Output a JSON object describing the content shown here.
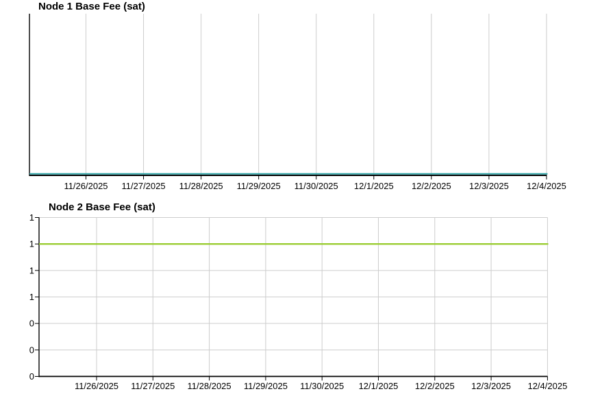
{
  "page": {
    "background_color": "#ffffff",
    "text_color": "#000000"
  },
  "style": {
    "axis_color": "#000000",
    "grid_color": "#cccccc",
    "tick_color": "#000000",
    "label_color": "#000000"
  },
  "chart_data": [
    {
      "type": "line",
      "title": "Node 1 Base Fee (sat)",
      "xlabel": "",
      "ylabel": "",
      "x_tick_labels": [
        "11/26/2025",
        "11/27/2025",
        "11/28/2025",
        "11/29/2025",
        "11/30/2025",
        "12/1/2025",
        "12/2/2025",
        "12/3/2025",
        "12/4/2025"
      ],
      "y_tick_labels": [],
      "ylim": [
        0,
        1
      ],
      "grid": {
        "vertical": true,
        "horizontal": false
      },
      "legend": "none",
      "series": [
        {
          "name": "Node 1 Base Fee",
          "values": [
            0,
            0,
            0,
            0,
            0,
            0,
            0,
            0,
            0
          ],
          "color": "#2fa4a6",
          "shape": "constant horizontal line along bottom axis"
        }
      ]
    },
    {
      "type": "line",
      "title": "Node 2 Base Fee (sat)",
      "xlabel": "",
      "ylabel": "",
      "x_tick_labels": [
        "11/26/2025",
        "11/27/2025",
        "11/28/2025",
        "11/29/2025",
        "11/30/2025",
        "12/1/2025",
        "12/2/2025",
        "12/3/2025",
        "12/4/2025"
      ],
      "y_tick_labels": [
        "1",
        "1",
        "1",
        "1",
        "0",
        "0",
        "0"
      ],
      "y_tick_values": [
        1.2,
        1.0,
        0.8,
        0.6,
        0.4,
        0.2,
        0.0
      ],
      "ylim": [
        0,
        1.2
      ],
      "grid": {
        "vertical": true,
        "horizontal": true
      },
      "legend": "none",
      "series": [
        {
          "name": "Node 2 Base Fee",
          "values": [
            1,
            1,
            1,
            1,
            1,
            1,
            1,
            1,
            1
          ],
          "color": "#9acd32",
          "shape": "constant horizontal line at value 1"
        }
      ]
    }
  ]
}
